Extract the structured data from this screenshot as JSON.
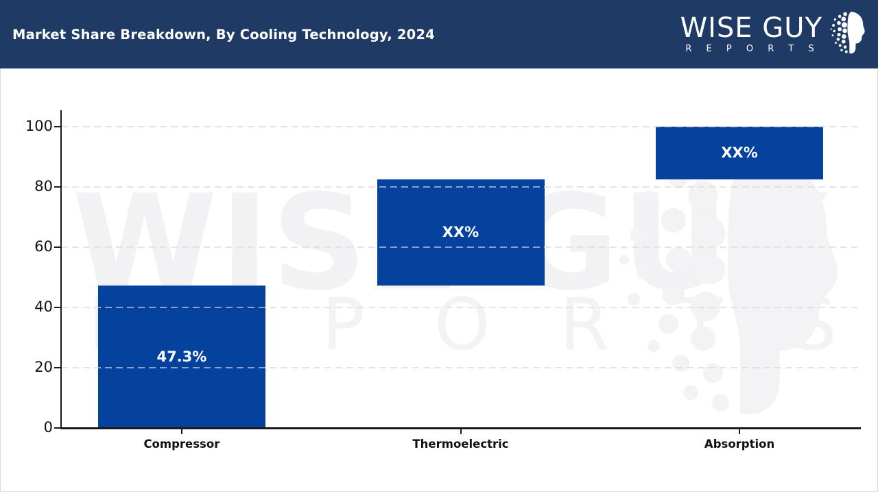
{
  "header": {
    "title": "Market Share Breakdown, By Cooling Technology, 2024",
    "logo": {
      "name": "WISE GUY",
      "sub": "R E P O R T S"
    }
  },
  "watermark": {
    "name": "WISE GUY",
    "sub": "R E P O R T S"
  },
  "chart_data": {
    "type": "bar",
    "variant": "floating-waterfall",
    "title": "Market Share Breakdown, By Cooling Technology, 2024",
    "categories": [
      "Compressor",
      "Thermoelectric",
      "Absorption"
    ],
    "bars": [
      {
        "category": "Compressor",
        "start": 0,
        "end": 47.3,
        "label": "47.3%"
      },
      {
        "category": "Thermoelectric",
        "start": 47.3,
        "end": 82.5,
        "label": "XX%"
      },
      {
        "category": "Absorption",
        "start": 82.5,
        "end": 100,
        "label": "XX%"
      }
    ],
    "xlabel": "",
    "ylabel": "",
    "ylim": [
      0,
      105.2
    ],
    "yticks": [
      0,
      20,
      40,
      60,
      80,
      100
    ],
    "grid": {
      "horizontal": true,
      "style": "dashed",
      "above_bars": true
    },
    "legend": "none",
    "colors": {
      "bar": "#05429D",
      "bar_label": "#FFFFFF",
      "grid": "#DCDCDC",
      "axis": "#1A1A1A",
      "header_bg": "#203A66",
      "watermark": "#F2F2F4"
    }
  }
}
